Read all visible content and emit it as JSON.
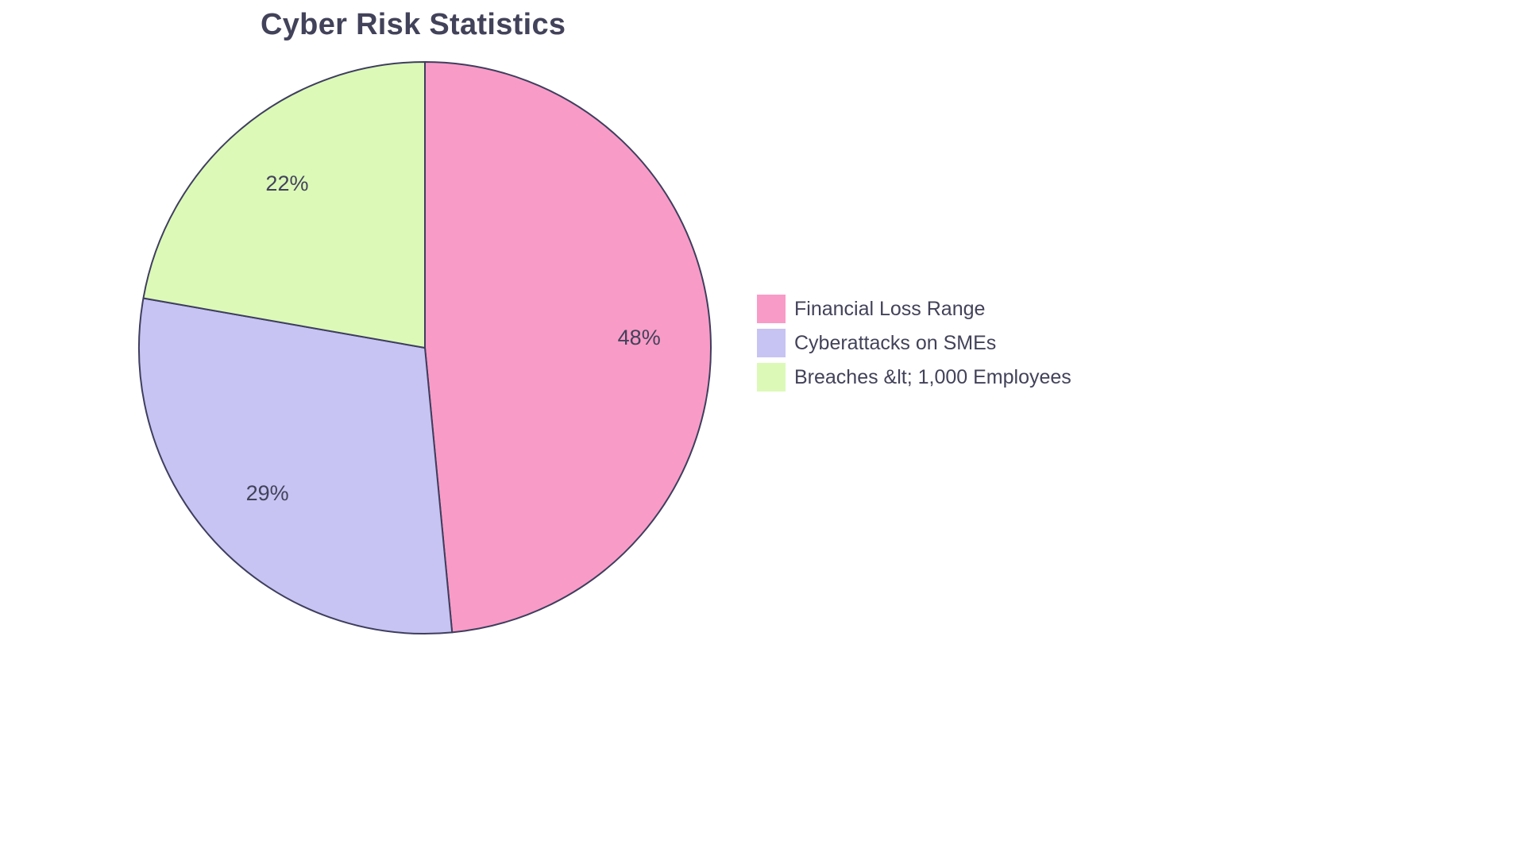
{
  "chart_data": {
    "type": "pie",
    "title": "Cyber Risk Statistics",
    "categories": [
      "Financial Loss Range",
      "Cyberattacks on SMEs",
      "Breaches &lt; 1,000 Employees"
    ],
    "values": [
      48,
      29,
      22
    ],
    "percent_labels": [
      "48%",
      "29%",
      "22%"
    ],
    "colors": [
      "#F99BC7",
      "#C7C3F2",
      "#DCF9B8"
    ],
    "slice_stroke": "#3E3E5E",
    "label_color": "#42425A",
    "start_angle_deg": 0,
    "direction": "clockwise",
    "legend_position": "right"
  }
}
